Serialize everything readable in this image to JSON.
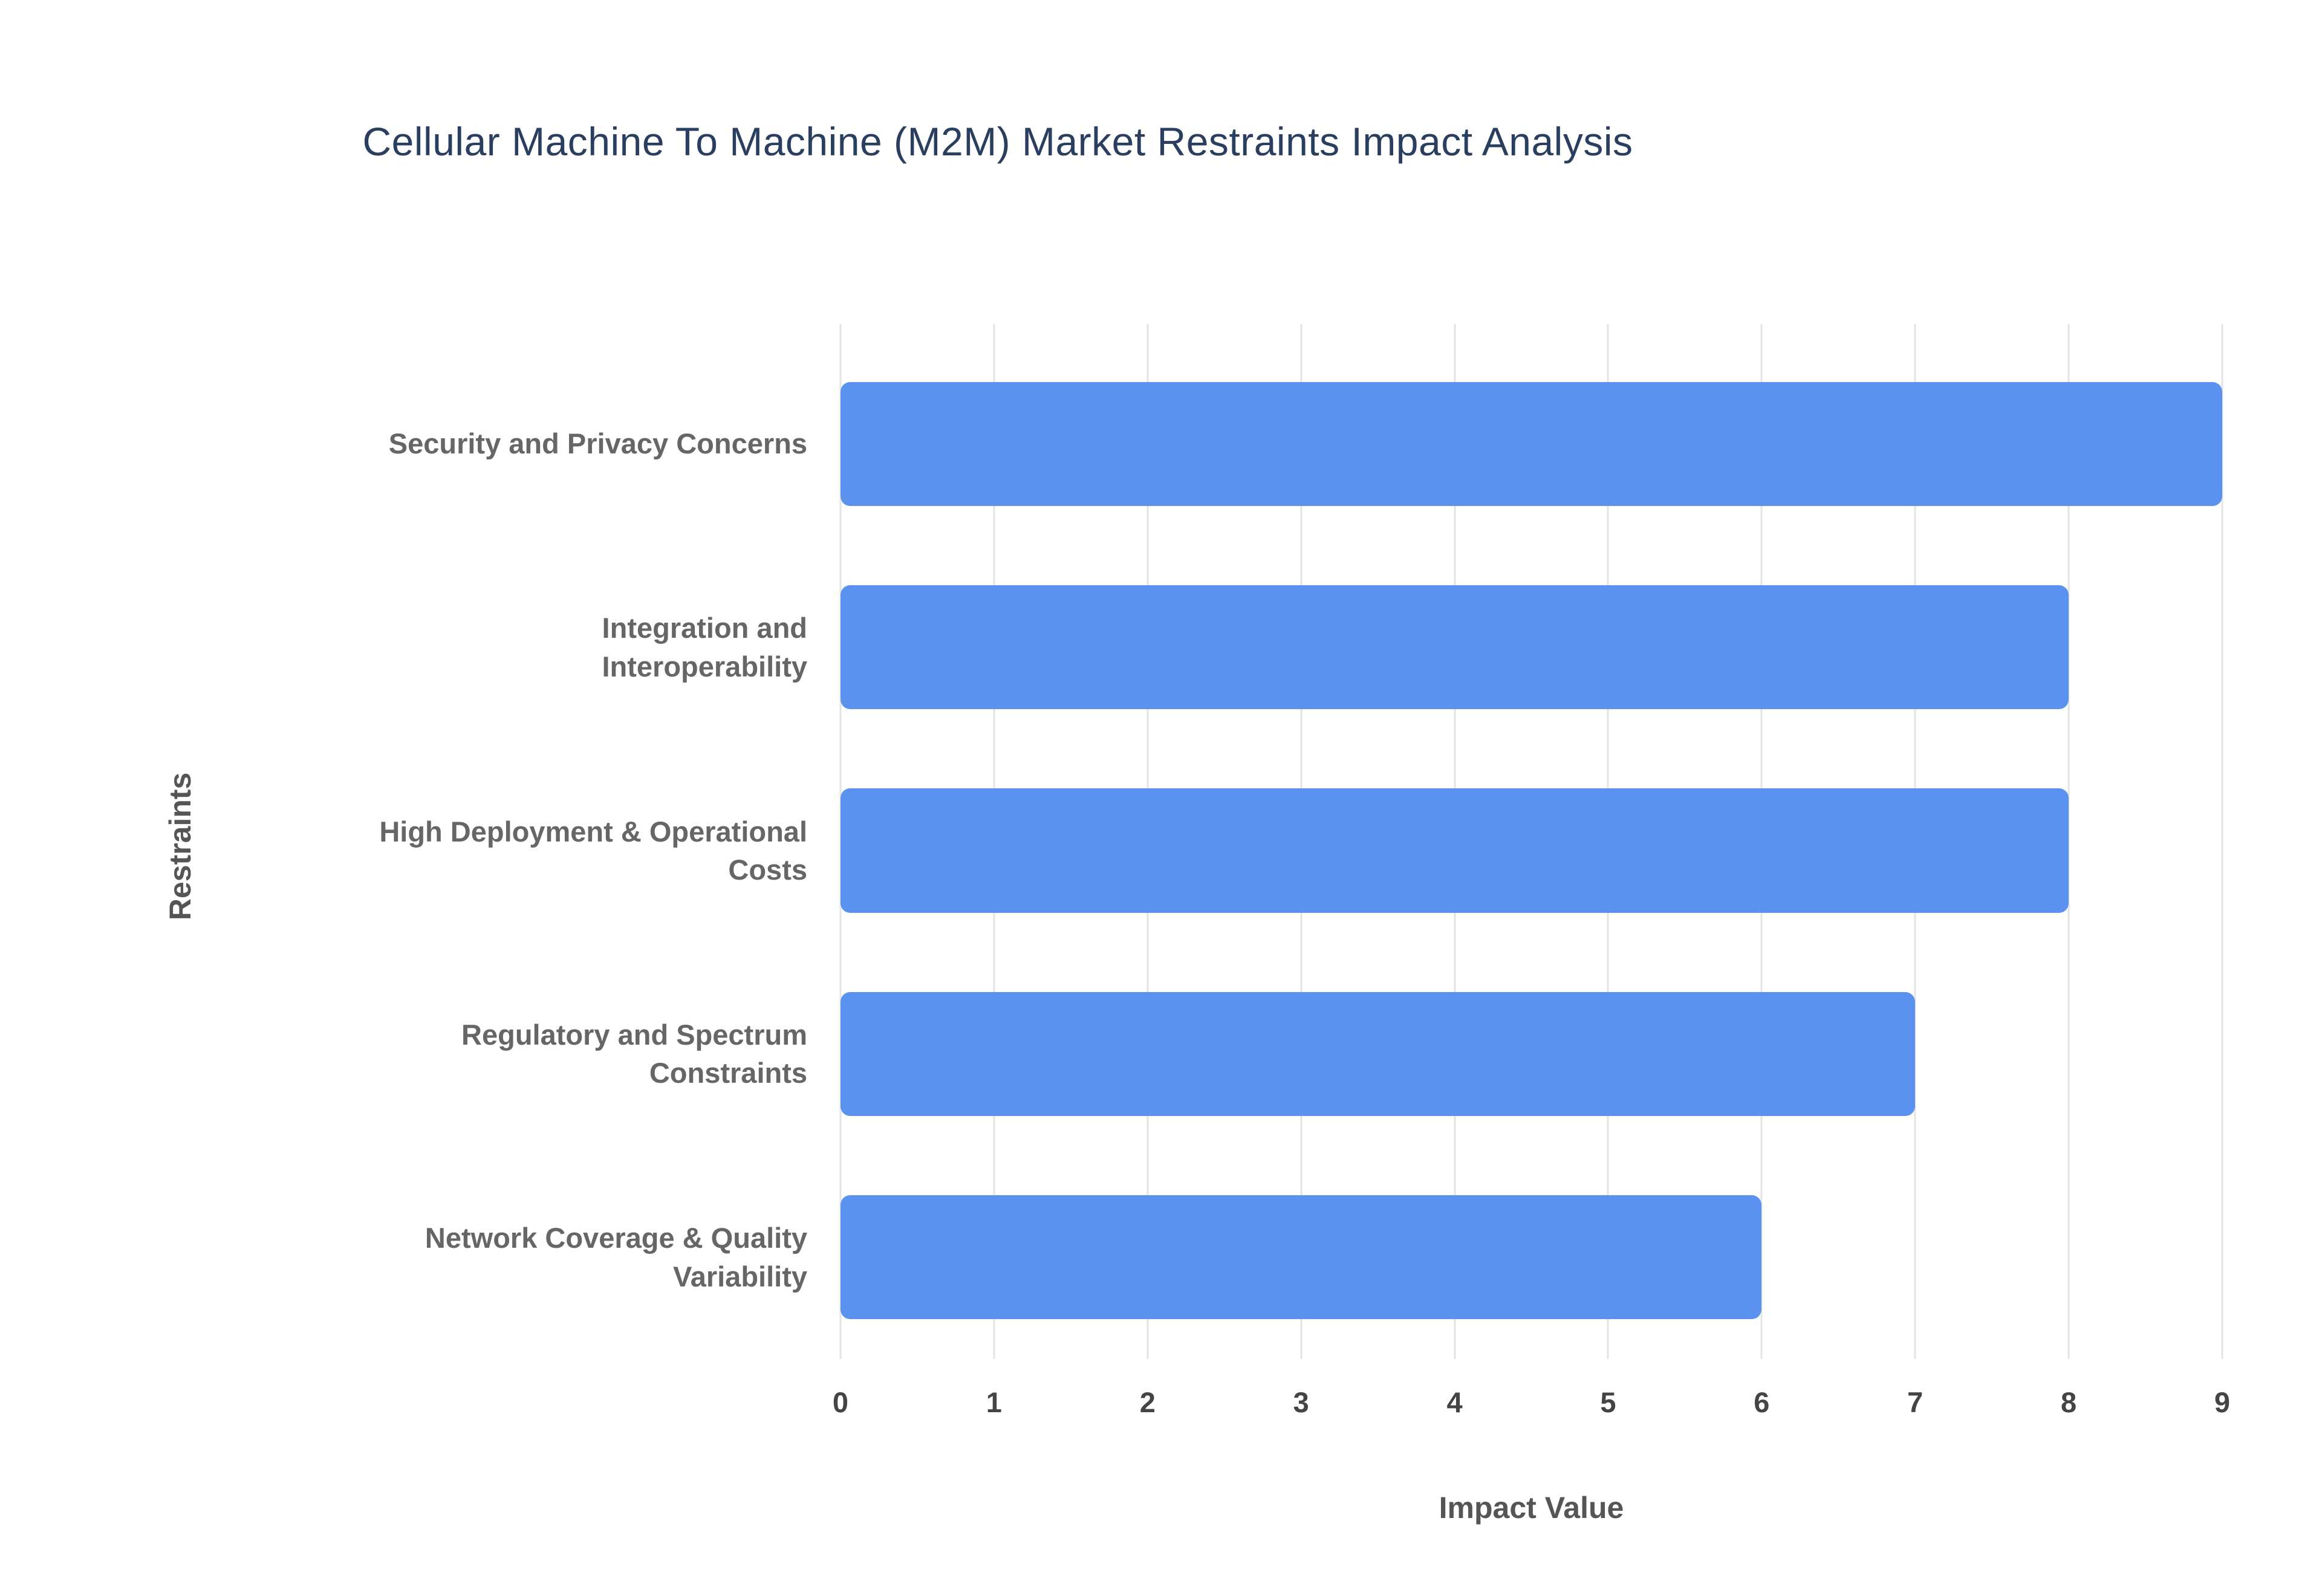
{
  "chart_data": {
    "type": "bar",
    "orientation": "horizontal",
    "title": "Cellular Machine To Machine (M2M) Market Restraints Impact Analysis",
    "categories": [
      "Security and Privacy Concerns",
      "Integration and\nInteroperability",
      "High Deployment & Operational\nCosts",
      "Regulatory and Spectrum\nConstraints",
      "Network Coverage & Quality\nVariability"
    ],
    "values": [
      9,
      8,
      8,
      7,
      6
    ],
    "xlabel": "Impact Value",
    "ylabel": "Restraints",
    "xlim": [
      0,
      9
    ],
    "xticks": [
      0,
      1,
      2,
      3,
      4,
      5,
      6,
      7,
      8,
      9
    ],
    "grid": true,
    "legend": false,
    "colors": {
      "bar": "#5b92f0",
      "grid": "#e3e3e3",
      "title": "#2a3f5f",
      "category_label": "#666666",
      "tick_label": "#444444",
      "axis_label": "#555555",
      "background": "#ffffff"
    }
  }
}
